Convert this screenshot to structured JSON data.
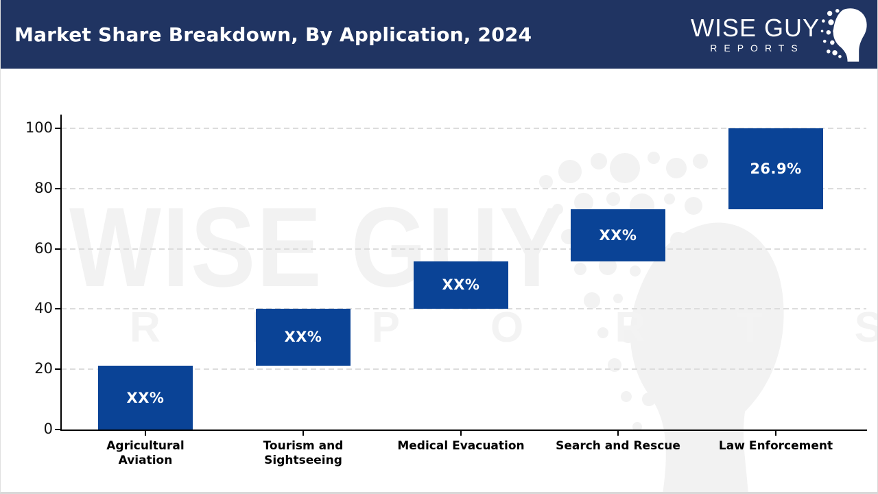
{
  "header": {
    "title": "Market Share Breakdown, By Application, 2024",
    "logo": {
      "primary": "WISE GUY",
      "secondary": "REPORTS"
    }
  },
  "watermark": {
    "primary": "WISE GUY",
    "secondary": "R E P O R T S"
  },
  "colors": {
    "header_bg": "#203462",
    "bar": "#0a4396",
    "grid": "#dcdcdc",
    "axis": "#000000",
    "watermark": "#f2f2f2"
  },
  "chart_data": {
    "type": "bar",
    "subtype": "floating-waterfall",
    "title": "Market Share Breakdown, By Application, 2024",
    "xlabel": "",
    "ylabel": "",
    "ylim": [
      0,
      104.5
    ],
    "yticks": [
      0,
      20,
      40,
      60,
      80,
      100
    ],
    "grid": "horizontal-dashed",
    "legend": "none",
    "bar_color": "#0a4396",
    "categories": [
      "Agricultural Aviation",
      "Tourism and Sightseeing",
      "Medical Evacuation",
      "Search and Rescue",
      "Law Enforcement"
    ],
    "category_lines": [
      [
        "Agricultural",
        "Aviation"
      ],
      [
        "Tourism and",
        "Sightseeing"
      ],
      [
        "Medical Evacuation"
      ],
      [
        "Search and Rescue"
      ],
      [
        "Law Enforcement"
      ]
    ],
    "segments": [
      {
        "category": "Agricultural Aviation",
        "start": 0,
        "end": 21.1,
        "label": "XX%"
      },
      {
        "category": "Tourism and Sightseeing",
        "start": 21.1,
        "end": 40.2,
        "label": "XX%"
      },
      {
        "category": "Medical Evacuation",
        "start": 40.2,
        "end": 55.8,
        "label": "XX%"
      },
      {
        "category": "Search and Rescue",
        "start": 55.8,
        "end": 73.1,
        "label": "XX%"
      },
      {
        "category": "Law Enforcement",
        "start": 73.1,
        "end": 100,
        "label": "26.9%"
      }
    ]
  }
}
